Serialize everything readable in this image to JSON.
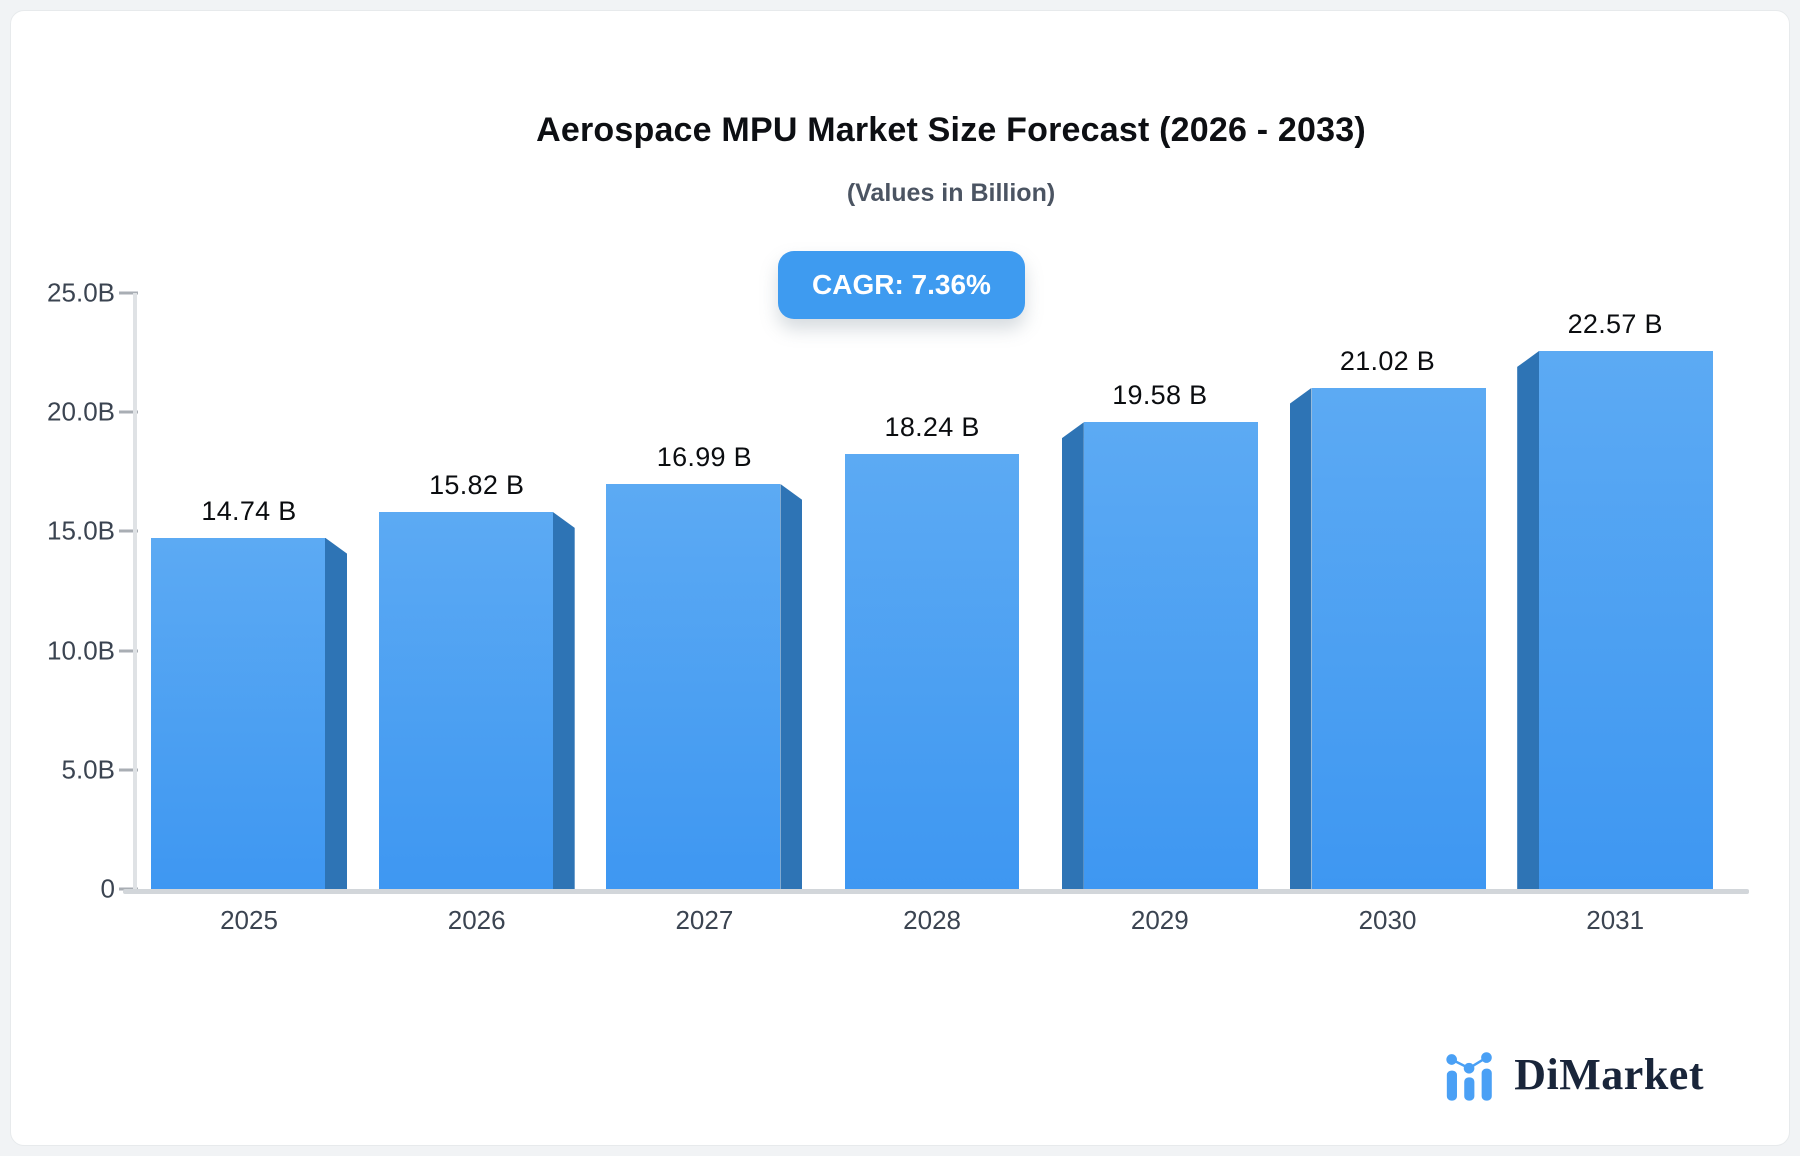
{
  "chart_data": {
    "type": "bar",
    "title": "Aerospace MPU Market Size Forecast (2026 - 2033)",
    "subtitle": "(Values in Billion)",
    "cagr_label": "CAGR: 7.36%",
    "categories": [
      "2025",
      "2026",
      "2027",
      "2028",
      "2029",
      "2030",
      "2031"
    ],
    "values": [
      14.74,
      15.82,
      16.99,
      18.24,
      19.58,
      21.02,
      22.57
    ],
    "value_labels": [
      "14.74 B",
      "15.82 B",
      "16.99 B",
      "18.24 B",
      "19.58 B",
      "21.02 B",
      "22.57 B"
    ],
    "ylabel": "",
    "xlabel": "",
    "ylim": [
      0,
      25
    ],
    "yticks": [
      {
        "value": 25,
        "label": "25.0B"
      },
      {
        "value": 20,
        "label": "20.0B"
      },
      {
        "value": 15,
        "label": "15.0B"
      },
      {
        "value": 10,
        "label": "10.0B"
      },
      {
        "value": 5,
        "label": "5.0B"
      },
      {
        "value": 0,
        "label": "0"
      }
    ],
    "grid": "off",
    "legend": "none",
    "colors": {
      "bar_top": "#5caaf3",
      "bar_bottom": "#3e97f2",
      "bar_side": "#2e74b5",
      "badge_bg": "#3e9bf0",
      "badge_text": "#ffffff"
    }
  },
  "brand": {
    "name": "DiMarket",
    "icon": "bar-chart-logo-icon",
    "icon_color": "#4aa0f5",
    "text_color": "#19253a"
  }
}
